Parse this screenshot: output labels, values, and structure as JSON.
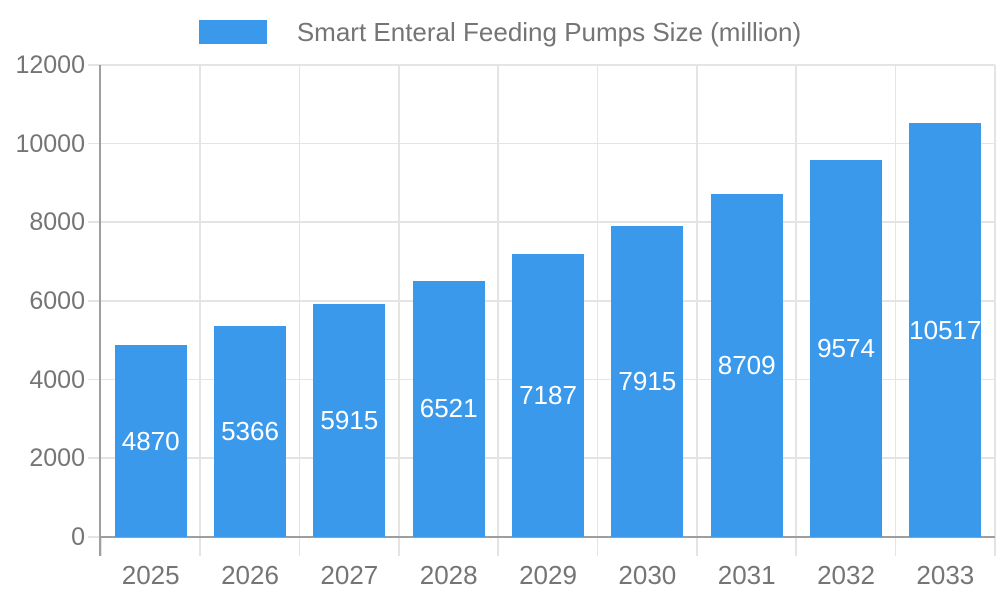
{
  "legend": {
    "label": "Smart Enteral Feeding Pumps Size (million)"
  },
  "chart_data": {
    "type": "bar",
    "title": "Smart Enteral Feeding Pumps Size (million)",
    "categories": [
      "2025",
      "2026",
      "2027",
      "2028",
      "2029",
      "2030",
      "2031",
      "2032",
      "2033"
    ],
    "series": [
      {
        "name": "Smart Enteral Feeding Pumps Size (million)",
        "values": [
          4870,
          5366,
          5915,
          6521,
          7187,
          7915,
          8709,
          9574,
          10517
        ]
      }
    ],
    "xlabel": "",
    "ylabel": "",
    "ylim": [
      0,
      12000
    ],
    "yticks": [
      0,
      2000,
      4000,
      6000,
      8000,
      10000,
      12000
    ],
    "grid": {
      "horizontal": true,
      "vertical": true
    },
    "legend_position": "top",
    "value_labels": "inside-center"
  },
  "colors": {
    "bar": "#3B99EC",
    "value_label": "#FFFFFF",
    "text": "#757575",
    "axis_line": "#9E9E9E",
    "gridline": "#E4E4E4",
    "background": "#FFFFFF"
  }
}
